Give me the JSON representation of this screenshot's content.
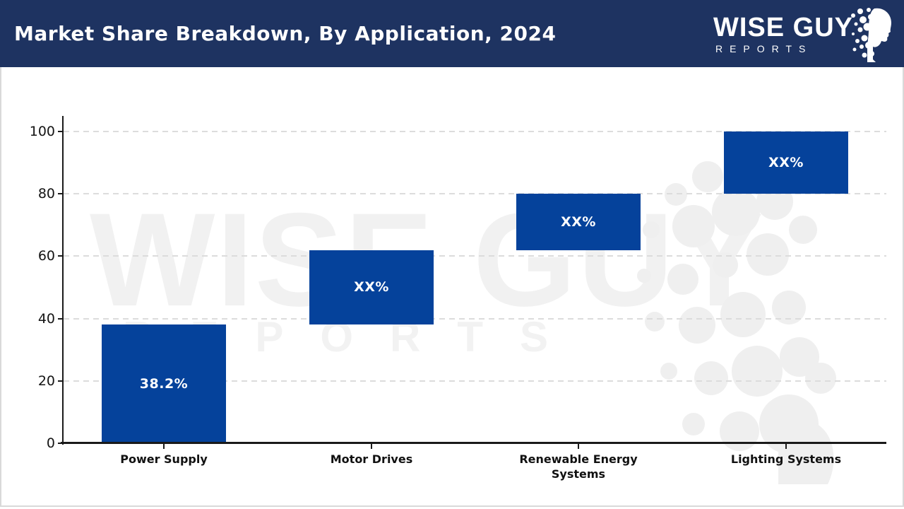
{
  "header": {
    "title": "Market Share Breakdown, By Application, 2024",
    "bg_color": "#1e3361",
    "logo": {
      "line1": "WISE GUY",
      "line2": "REPORTS"
    }
  },
  "watermark": {
    "line1": "WISE GUY",
    "line2": "REPORTS"
  },
  "chart_data": {
    "type": "bar",
    "subtype": "waterfall",
    "title": "Market Share Breakdown, By Application, 2024",
    "categories": [
      "Power Supply",
      "Motor Drives",
      "Renewable Energy Systems",
      "Lighting Systems"
    ],
    "bars": [
      {
        "label": "38.2%",
        "start": 0,
        "end": 38.2
      },
      {
        "label": "XX%",
        "start": 38.2,
        "end": 62
      },
      {
        "label": "XX%",
        "start": 62,
        "end": 80
      },
      {
        "label": "XX%",
        "start": 80,
        "end": 100
      }
    ],
    "y_ticks": [
      0,
      20,
      40,
      60,
      80,
      100
    ],
    "ylim": [
      0,
      105
    ],
    "xlabel": "",
    "ylabel": "",
    "bar_color": "#05429b",
    "grid": "horizontal-dashed",
    "legend": "none"
  }
}
